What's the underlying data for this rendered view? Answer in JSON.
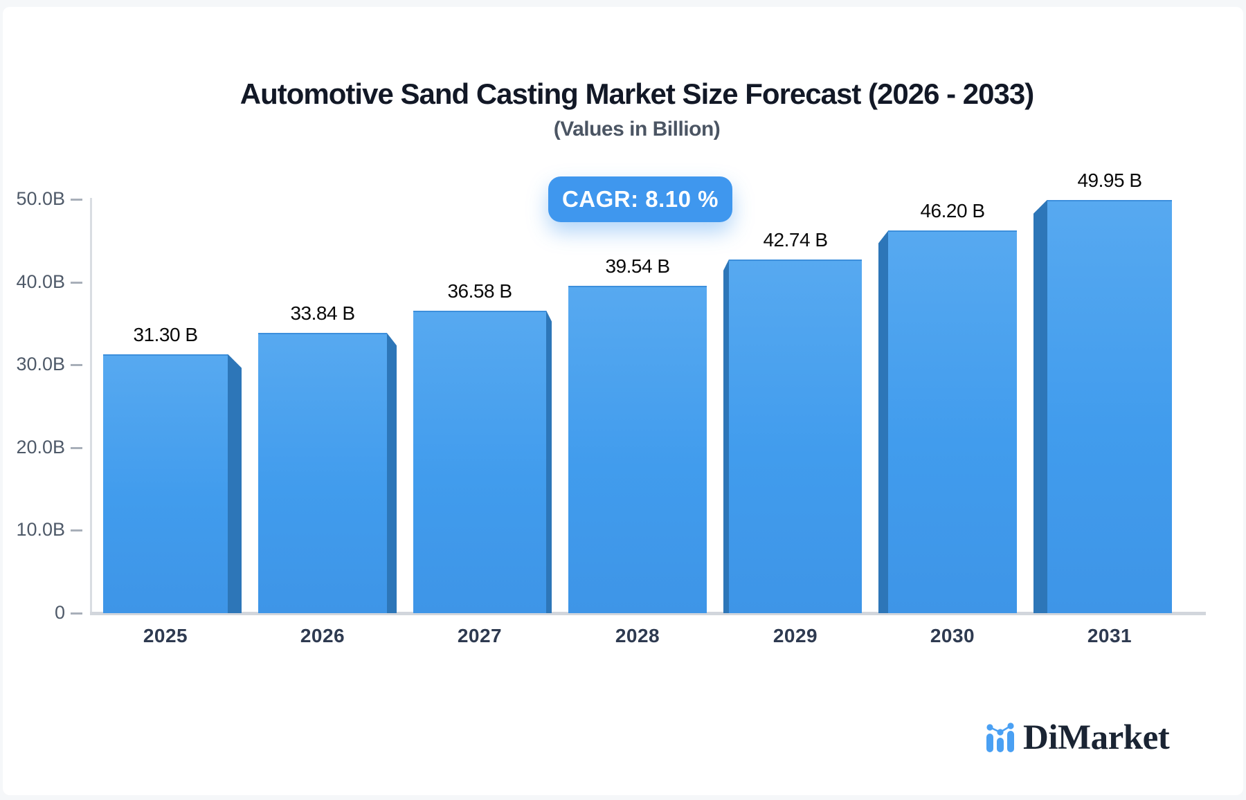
{
  "title": "Automotive Sand Casting Market Size Forecast (2026 - 2033)",
  "subtitle": "(Values in Billion)",
  "badge": {
    "label": "CAGR: 8.10 %",
    "color": "#3f97ee"
  },
  "logo": {
    "text": "DiMarket",
    "icon": "mini-bar-chart-icon",
    "icon_color": "#4aa0f3",
    "text_color": "#1a2433"
  },
  "chart_data": {
    "type": "bar",
    "categories": [
      "2025",
      "2026",
      "2027",
      "2028",
      "2029",
      "2030",
      "2031"
    ],
    "values": [
      31.3,
      33.84,
      36.58,
      39.54,
      42.74,
      46.2,
      49.95
    ],
    "value_labels": [
      "31.30 B",
      "33.84 B",
      "36.58 B",
      "39.54 B",
      "42.74 B",
      "46.20 B",
      "49.95 B"
    ],
    "y_tick_values": [
      50,
      40,
      30,
      20,
      10,
      0
    ],
    "y_tick_labels": [
      "50.0B",
      "40.0B",
      "30.0B",
      "20.0B",
      "10.0B",
      "0"
    ],
    "ylim": [
      0,
      50
    ],
    "xlabel": "",
    "ylabel": "",
    "grid": false,
    "legend": false,
    "bar_color": "#3f9aec",
    "bar_side_color": "#2d76b8",
    "style": "3d-perspective-bars"
  }
}
